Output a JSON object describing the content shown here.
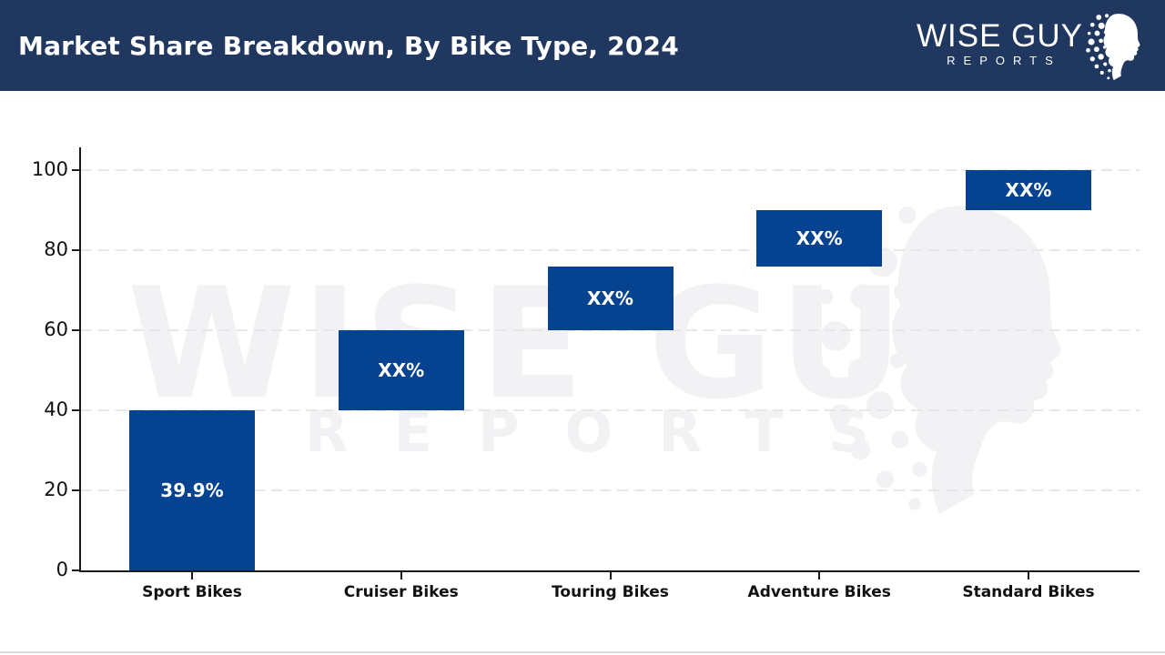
{
  "header": {
    "title": "Market Share Breakdown, By Bike Type, 2024",
    "bg_color": "#20375f",
    "title_color": "#ffffff"
  },
  "brand": {
    "line1": "WISE GUY",
    "line2": "REPORTS",
    "face_icon": "dotted-face-profile"
  },
  "watermark": {
    "line1": "WISE GUY",
    "line2": "REPORTS",
    "face_icon": "dotted-face-profile",
    "color": "#f2f2f4"
  },
  "chart_data": {
    "type": "bar",
    "subtype": "waterfall",
    "title": "Market Share Breakdown, By Bike Type, 2024",
    "categories": [
      "Sport Bikes",
      "Cruiser Bikes",
      "Touring Bikes",
      "Adventure Bikes",
      "Standard Bikes"
    ],
    "bars": [
      {
        "category": "Sport Bikes",
        "start": 0,
        "end": 39.9,
        "value_pct": 39.9,
        "label": "39.9%"
      },
      {
        "category": "Cruiser Bikes",
        "start": 39.9,
        "end": 60,
        "value_pct": 20.1,
        "label": "XX%"
      },
      {
        "category": "Touring Bikes",
        "start": 60,
        "end": 76,
        "value_pct": 16,
        "label": "XX%"
      },
      {
        "category": "Adventure Bikes",
        "start": 76,
        "end": 90,
        "value_pct": 14,
        "label": "XX%"
      },
      {
        "category": "Standard Bikes",
        "start": 90,
        "end": 100,
        "value_pct": 10,
        "label": "XX%"
      }
    ],
    "xlabel": "",
    "ylabel": "",
    "yticks": [
      0,
      20,
      40,
      60,
      80,
      100
    ],
    "ylim": [
      0,
      106
    ],
    "grid": "horizontal-dashed",
    "grid_color": "#e7e7e9",
    "axis_color": "#1a1a1a",
    "legend": "none",
    "bar_color": "#05428f",
    "bar_label_color": "#ffffff"
  }
}
